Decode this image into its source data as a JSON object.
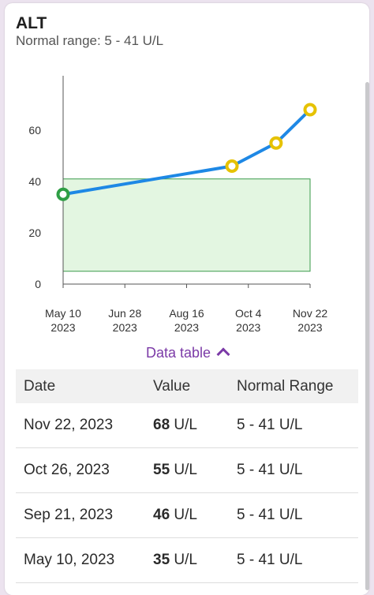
{
  "header": {
    "title": "ALT",
    "subtitle": "Normal range: 5 - 41 U/L"
  },
  "chart_data": {
    "type": "line",
    "x": [
      "2023-05-10",
      "2023-09-21",
      "2023-10-26",
      "2023-11-22"
    ],
    "y": [
      35,
      46,
      55,
      68
    ],
    "x_ticks": [
      {
        "date": "2023-05-10",
        "line1": "May 10",
        "line2": "2023"
      },
      {
        "date": "2023-06-28",
        "line1": "Jun 28",
        "line2": "2023"
      },
      {
        "date": "2023-08-16",
        "line1": "Aug 16",
        "line2": "2023"
      },
      {
        "date": "2023-10-04",
        "line1": "Oct 4",
        "line2": "2023"
      },
      {
        "date": "2023-11-22",
        "line1": "Nov 22",
        "line2": "2023"
      }
    ],
    "y_ticks": [
      0,
      20,
      40,
      60
    ],
    "ylim": [
      0,
      80
    ],
    "normal_range": [
      5,
      41
    ],
    "colors": {
      "line": "#1e88e5",
      "normal_point": "#2e9e44",
      "high_point": "#e6c200",
      "band_fill": "#e3f6e1",
      "band_stroke": "#3a9a4a"
    }
  },
  "data_table_toggle": {
    "label": "Data table",
    "icon": "chevron-up-icon"
  },
  "table": {
    "headers": {
      "date": "Date",
      "value": "Value",
      "range": "Normal Range"
    },
    "rows": [
      {
        "date": "Nov 22, 2023",
        "value": "68",
        "unit": "U/L",
        "range": "5 - 41 U/L"
      },
      {
        "date": "Oct 26, 2023",
        "value": "55",
        "unit": "U/L",
        "range": "5 - 41 U/L"
      },
      {
        "date": "Sep 21, 2023",
        "value": "46",
        "unit": "U/L",
        "range": "5 - 41 U/L"
      },
      {
        "date": "May 10, 2023",
        "value": "35",
        "unit": "U/L",
        "range": "5 - 41 U/L"
      }
    ]
  }
}
